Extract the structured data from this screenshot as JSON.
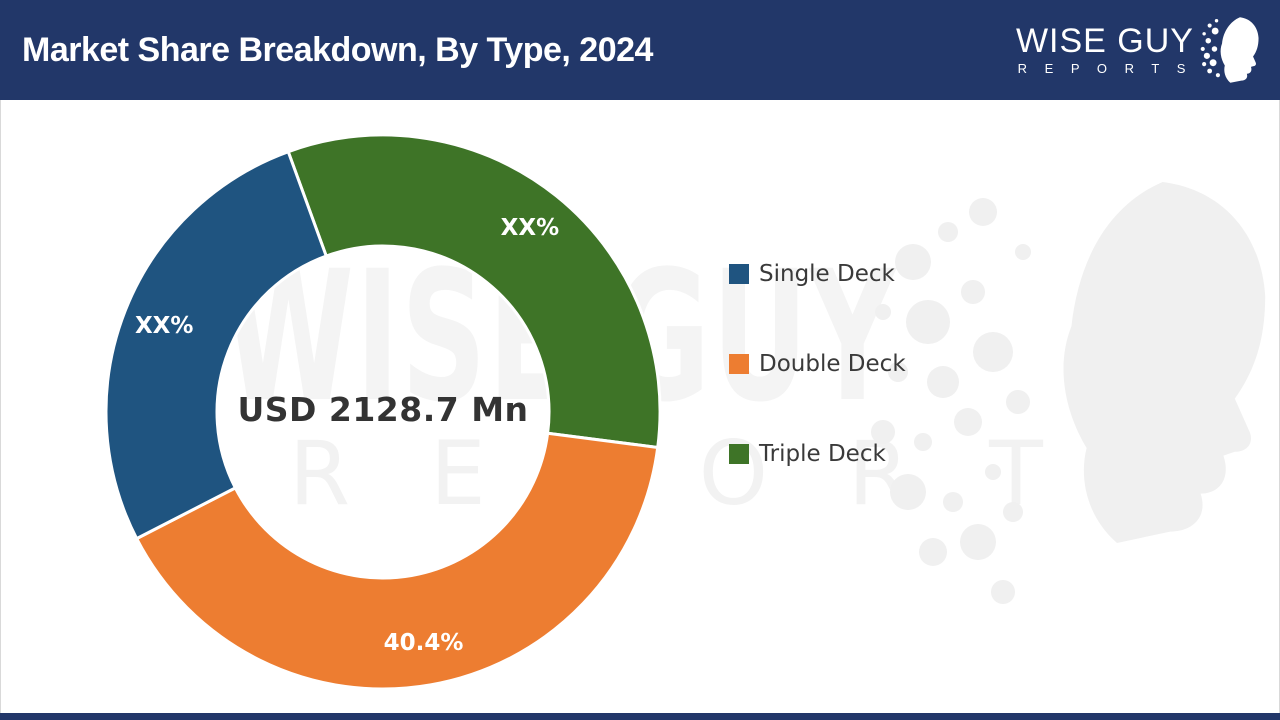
{
  "header": {
    "title": "Market Share Breakdown, By Type, 2024",
    "logo": {
      "line1": "WISE GUY",
      "line2": "R E P O R T S"
    }
  },
  "watermark": {
    "line1": "WISE GUY",
    "line2": "R E P O R T S"
  },
  "colors": {
    "header_navy": "#223769",
    "single_deck_blue": "#1f5480",
    "double_deck_orange": "#ed7d31",
    "triple_deck_green": "#3e7427",
    "watermark_gray": "#f2f2f2",
    "label_white": "#ffffff",
    "center_text_dark": "#333333"
  },
  "chart_data": {
    "type": "donut",
    "title": "Market Share Breakdown, By Type, 2024",
    "center_label": "USD 2128.7 Mn",
    "units": "USD Mn",
    "total_value": 2128.7,
    "start_angle_deg": -20,
    "geometry": {
      "outer_radius": 277,
      "inner_radius": 166,
      "label_radius": 235
    },
    "segments": [
      {
        "name": "Triple Deck",
        "label": "XX%",
        "value_pct": 32.6,
        "color": "#3e7427"
      },
      {
        "name": "Double Deck",
        "label": "40.4%",
        "value_pct": 40.4,
        "color": "#ed7d31"
      },
      {
        "name": "Single Deck",
        "label": "XX%",
        "value_pct": 27.0,
        "color": "#1f5480"
      }
    ],
    "legend": [
      {
        "label": "Single Deck",
        "color": "#1f5480"
      },
      {
        "label": "Double Deck",
        "color": "#ed7d31"
      },
      {
        "label": "Triple Deck",
        "color": "#3e7427"
      }
    ],
    "legend_position": "right"
  }
}
